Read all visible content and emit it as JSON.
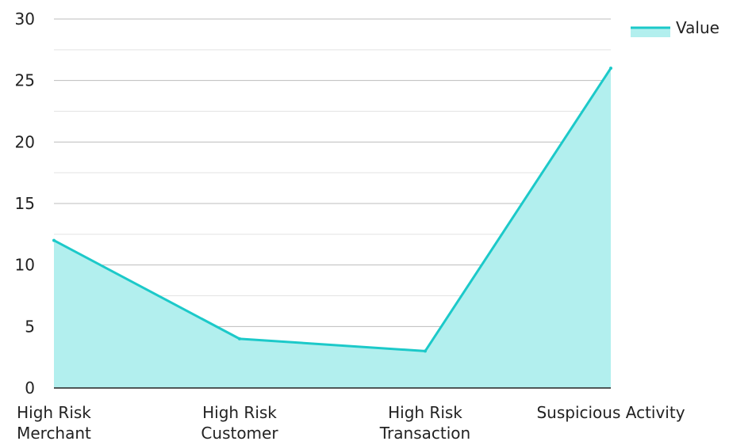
{
  "chart_data": {
    "type": "area",
    "categories": [
      [
        "High Risk",
        "Merchant"
      ],
      [
        "High Risk",
        "Customer"
      ],
      [
        "High Risk",
        "Transaction"
      ],
      [
        "Suspicious Activity"
      ]
    ],
    "series": [
      {
        "name": "Value",
        "values": [
          12,
          4,
          3,
          26
        ]
      }
    ],
    "ylim": [
      0,
      30
    ],
    "yticks": [
      0,
      5,
      10,
      15,
      20,
      25,
      30
    ],
    "minor_grid_step": 2.5,
    "grid": true,
    "legend": "top-right",
    "colors": {
      "line": "#1cc9c9",
      "fill": "#b2efee",
      "axis": "#222222",
      "grid_major": "#bdbdbd",
      "grid_minor": "#e3e3e3"
    }
  }
}
